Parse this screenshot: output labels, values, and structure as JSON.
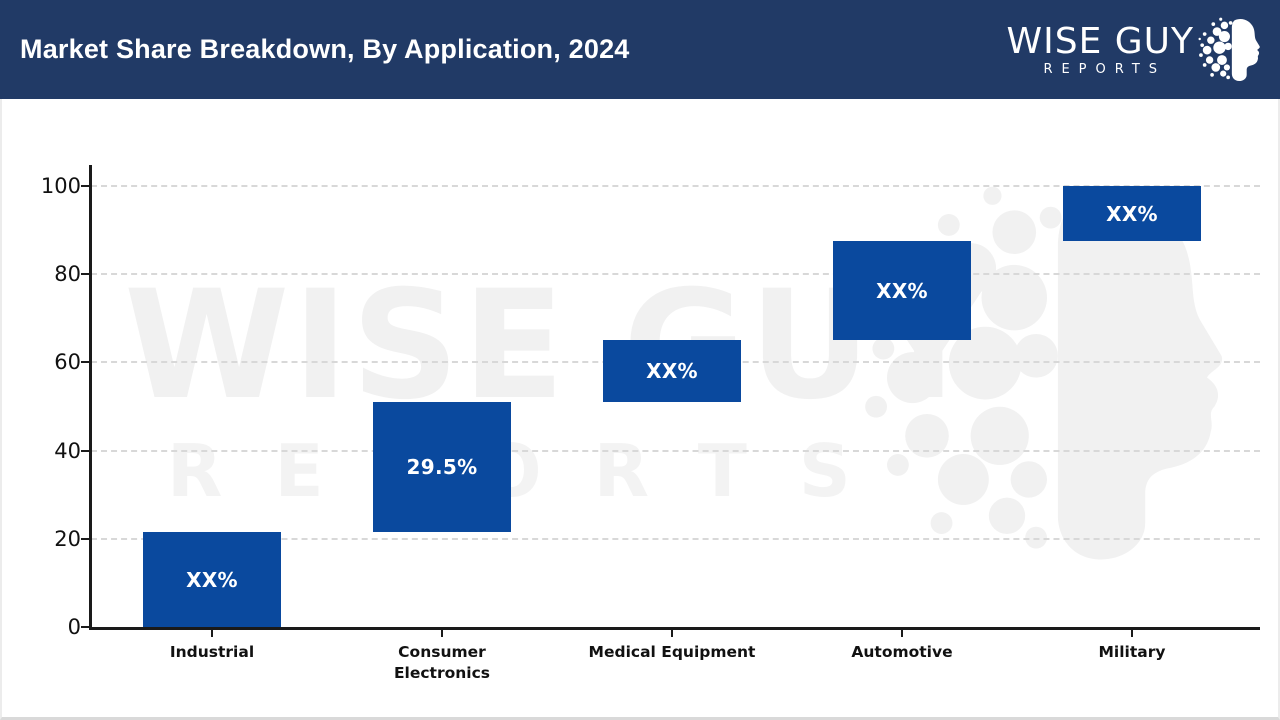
{
  "header": {
    "title": "Market Share Breakdown, By Application, 2024",
    "brand_line1": "WISE GUY",
    "brand_line2": "REPORTS"
  },
  "watermark": {
    "line1": "WISE GUY",
    "line2": "REPORTS"
  },
  "chart_data": {
    "type": "bar",
    "variant": "floating-waterfall",
    "title": "Market Share Breakdown, By Application, 2024",
    "categories": [
      "Industrial",
      "Consumer Electronics",
      "Medical Equipment",
      "Automotive",
      "Military"
    ],
    "category_lines": [
      [
        "Industrial"
      ],
      [
        "Consumer",
        "Electronics"
      ],
      [
        "Medical Equipment"
      ],
      [
        "Automotive"
      ],
      [
        "Military"
      ]
    ],
    "bars": [
      {
        "category": "Industrial",
        "start": 0,
        "end": 21.5,
        "label": "XX%"
      },
      {
        "category": "Consumer Electronics",
        "start": 21.5,
        "end": 51,
        "label": "29.5%"
      },
      {
        "category": "Medical Equipment",
        "start": 51,
        "end": 65,
        "label": "XX%"
      },
      {
        "category": "Automotive",
        "start": 65,
        "end": 87.5,
        "label": "XX%"
      },
      {
        "category": "Military",
        "start": 87.5,
        "end": 100,
        "label": "XX%"
      }
    ],
    "y_ticks": [
      0,
      20,
      40,
      60,
      80,
      100
    ],
    "ylim": [
      0,
      105
    ],
    "xlabel": "",
    "ylabel": "",
    "grid": "horizontal-dashed",
    "legend": "none",
    "bar_color": "#0a499e",
    "bar_label_color": "#ffffff",
    "axis_color": "#1a1a1a",
    "grid_color": "#d8d8d8"
  },
  "colors": {
    "header_bg": "#213a66",
    "body_bg": "#ffffff",
    "watermark": "#f1f1f1"
  }
}
